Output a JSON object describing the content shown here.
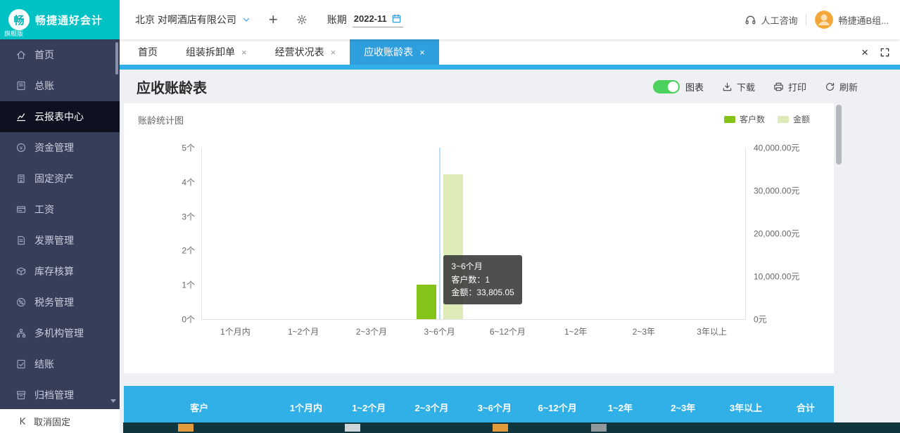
{
  "colors": {
    "brand_teal": "#00c2c5",
    "sidebar_bg": "#363e59",
    "sidebar_active_bg": "#0d1120",
    "active_tab_blue": "#2f9edc",
    "cyan_bar": "#31b0e8",
    "toggle_on_green": "#4cd05e",
    "bar_customers_green": "#84c318",
    "bar_amount_light_green": "#dcebb7"
  },
  "header": {
    "logo_name": "畅捷通好会计",
    "edition": "旗舰版",
    "company": "北京 对啊酒店有限公司",
    "plus_label": "+",
    "period_label": "账期",
    "period_value": "2022-11",
    "support_label": "人工咨询",
    "username": "畅捷通B组..."
  },
  "sidebar": {
    "items": [
      {
        "key": "home",
        "icon": "home-icon",
        "label": "首页",
        "active": false
      },
      {
        "key": "general-ledger",
        "icon": "ledger-icon",
        "label": "总账",
        "active": false
      },
      {
        "key": "cloud-reports",
        "icon": "cloud-report-icon",
        "label": "云报表中心",
        "active": true
      },
      {
        "key": "funds",
        "icon": "funds-icon",
        "label": "资金管理",
        "active": false
      },
      {
        "key": "fixed-assets",
        "icon": "fixed-assets-icon",
        "label": "固定资产",
        "active": false
      },
      {
        "key": "payroll",
        "icon": "payroll-icon",
        "label": "工资",
        "active": false
      },
      {
        "key": "invoices",
        "icon": "invoice-icon",
        "label": "发票管理",
        "active": false
      },
      {
        "key": "inventory",
        "icon": "inventory-icon",
        "label": "库存核算",
        "active": false
      },
      {
        "key": "tax",
        "icon": "tax-icon",
        "label": "税务管理",
        "active": false
      },
      {
        "key": "multi-org",
        "icon": "multi-org-icon",
        "label": "多机构管理",
        "active": false
      },
      {
        "key": "closing",
        "icon": "closing-icon",
        "label": "结账",
        "active": false
      },
      {
        "key": "archive",
        "icon": "archive-icon",
        "label": "归档管理",
        "active": false
      }
    ],
    "unpin_label": "取消固定"
  },
  "tabs": [
    {
      "key": "home",
      "label": "首页",
      "closable": false,
      "active": false
    },
    {
      "key": "assembly-order",
      "label": "组装拆卸单",
      "closable": true,
      "active": false
    },
    {
      "key": "operating-report",
      "label": "经营状况表",
      "closable": true,
      "active": false
    },
    {
      "key": "receivables-aging",
      "label": "应收账龄表",
      "closable": true,
      "active": true
    }
  ],
  "page": {
    "title": "应收账龄表",
    "toggle_label": "图表",
    "actions": [
      {
        "key": "download",
        "icon": "download-icon",
        "label": "下载"
      },
      {
        "key": "print",
        "icon": "print-icon",
        "label": "打印"
      },
      {
        "key": "refresh",
        "icon": "refresh-icon",
        "label": "刷新"
      }
    ]
  },
  "chart_data": {
    "type": "bar",
    "title": "账龄统计图",
    "categories": [
      "1个月内",
      "1~2个月",
      "2~3个月",
      "3~6个月",
      "6~12个月",
      "1~2年",
      "2~3年",
      "3年以上"
    ],
    "series": [
      {
        "key": "customers",
        "name": "客户数",
        "axis": "left",
        "color": "#84c318",
        "values": [
          0,
          0,
          0,
          1,
          0,
          0,
          0,
          0
        ]
      },
      {
        "key": "amount",
        "name": "金额",
        "axis": "right",
        "color": "#dcebb7",
        "values": [
          0,
          0,
          0,
          33805.05,
          0,
          0,
          0,
          0
        ]
      }
    ],
    "left_axis": {
      "max": 5,
      "ticks": [
        "0个",
        "1个",
        "2个",
        "3个",
        "4个",
        "5个"
      ]
    },
    "right_axis": {
      "max": 40000,
      "ticks": [
        "0元",
        "10,000.00元",
        "20,000.00元",
        "30,000.00元",
        "40,000.00元"
      ]
    },
    "legend_position": "top-right",
    "grid": false,
    "tooltip": {
      "category_index": 3,
      "title": "3~6个月",
      "lines": [
        "客户数：1",
        "金额：33,805.05"
      ]
    }
  },
  "table": {
    "headers": [
      "客户",
      "1个月内",
      "1~2个月",
      "2~3个月",
      "3~6个月",
      "6~12个月",
      "1~2年",
      "2~3年",
      "3年以上",
      "合计"
    ]
  }
}
